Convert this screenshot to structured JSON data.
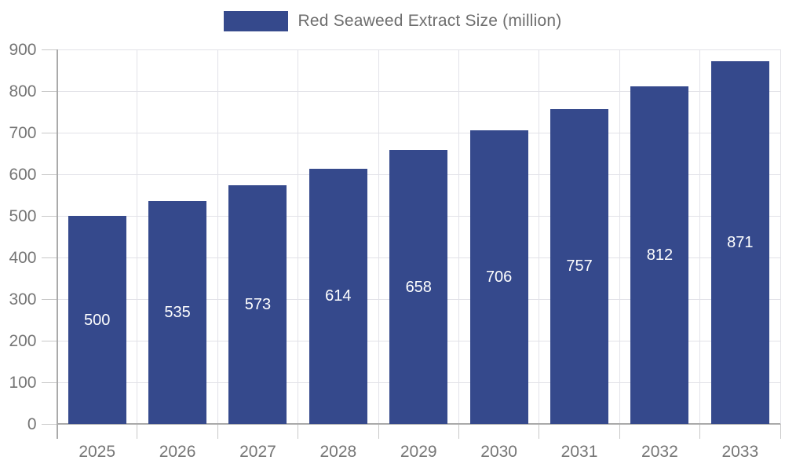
{
  "chart_data": {
    "type": "bar",
    "title": "",
    "legend": "Red Seaweed Extract Size (million)",
    "categories": [
      "2025",
      "2026",
      "2027",
      "2028",
      "2029",
      "2030",
      "2031",
      "2032",
      "2033"
    ],
    "values": [
      500,
      535,
      573,
      614,
      658,
      706,
      757,
      812,
      871
    ],
    "xlabel": "",
    "ylabel": "",
    "ylim": [
      0,
      900
    ],
    "ytick_step": 100,
    "ytick_labels": [
      "0",
      "100",
      "200",
      "300",
      "400",
      "500",
      "600",
      "700",
      "800",
      "900"
    ],
    "grid": true,
    "legend_position": "top-center",
    "bar_value_labels": "inside-center"
  },
  "colors": {
    "bar": "#35498c",
    "bar_value_text": "#ffffff",
    "grid_line": "#e2e2e8",
    "axis_line": "#aaaaaa",
    "tick_mark": "#c8c8c8",
    "tick_label_text": "#757575",
    "legend_text": "#6e6e6e",
    "background": "#ffffff"
  }
}
